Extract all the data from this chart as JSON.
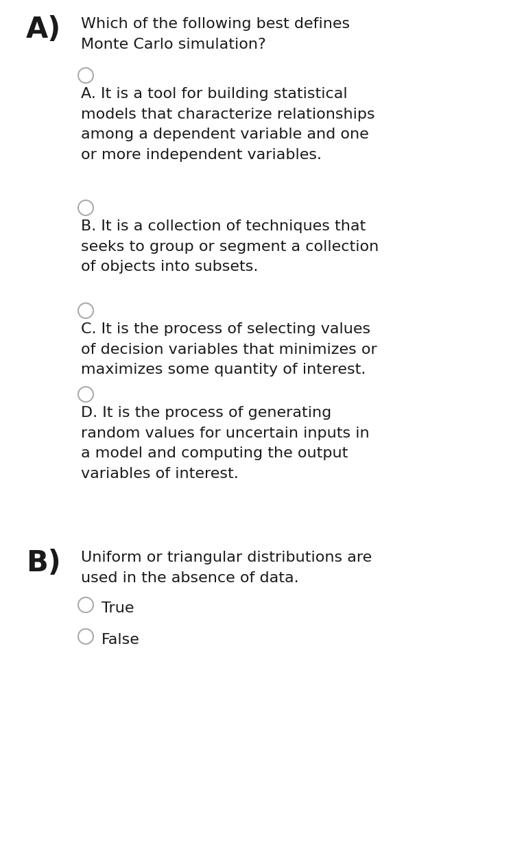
{
  "bg_color": "#ffffff",
  "text_color": "#1a1a1a",
  "circle_color": "#aaaaaa",
  "section_A_label": "A)",
  "section_A_question": "Which of the following best defines\nMonte Carlo simulation?",
  "options": [
    "A. It is a tool for building statistical\nmodels that characterize relationships\namong a dependent variable and one\nor more independent variables.",
    "B. It is a collection of techniques that\nseeks to group or segment a collection\nof objects into subsets.",
    "C. It is the process of selecting values\nof decision variables that minimizes or\nmaximizes some quantity of interest.",
    "D. It is the process of generating\nrandom values for uncertain inputs in\na model and computing the output\nvariables of interest."
  ],
  "section_B_label": "B)",
  "section_B_question": "Uniform or triangular distributions are\nused in the absence of data.",
  "tf_options": [
    "True",
    "False"
  ],
  "label_fontsize": 30,
  "question_fontsize": 16,
  "option_fontsize": 16,
  "figwidth": 7.64,
  "figheight": 12.35,
  "dpi": 100
}
